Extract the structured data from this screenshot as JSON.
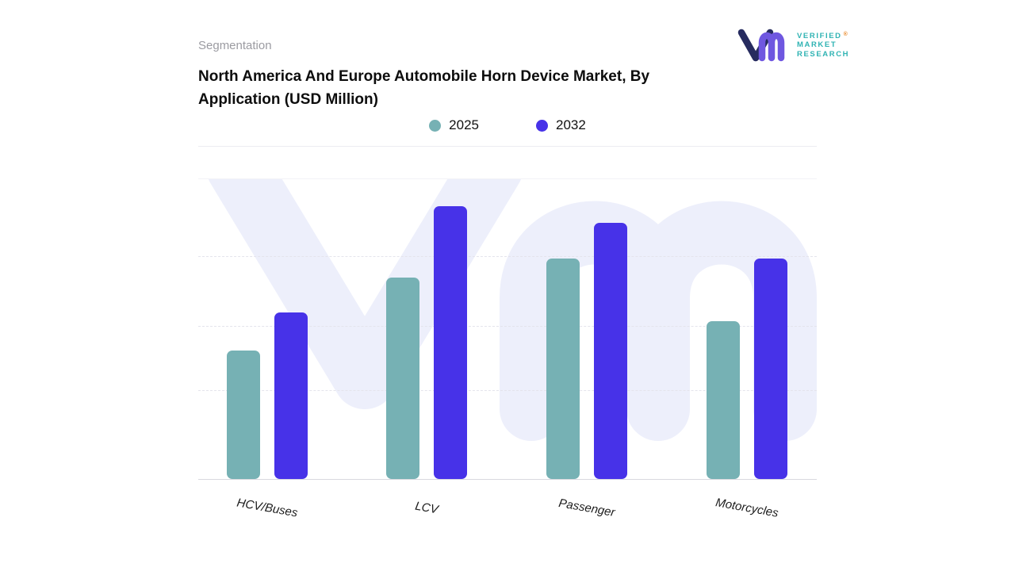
{
  "header": {
    "eyebrow": "Segmentation",
    "title": "North America And Europe Automobile Horn Device Market, By Application (USD Million)"
  },
  "logo": {
    "lines": [
      "VERIFIED",
      "MARKET",
      "RESEARCH"
    ],
    "registered": "®"
  },
  "chart_data": {
    "type": "bar",
    "title": "North America And Europe Automobile Horn Device Market, By Application (USD Million)",
    "categories": [
      "HCV/Buses",
      "LCV",
      "Passenger",
      "Motorcycles"
    ],
    "series": [
      {
        "name": "2025",
        "color": "#76b1b4",
        "values": [
          47,
          74,
          81,
          58
        ]
      },
      {
        "name": "2032",
        "color": "#4732e8",
        "values": [
          61,
          100,
          94,
          81
        ]
      }
    ],
    "xlabel": "",
    "ylabel": "",
    "ylim": [
      0,
      110
    ],
    "y_axis_tick_labels_visible": false,
    "grid": "dashed-horizontal",
    "legend_position": "top-center",
    "watermark": "vm",
    "background": "#ffffff",
    "watermark_color": "#edeffb"
  }
}
